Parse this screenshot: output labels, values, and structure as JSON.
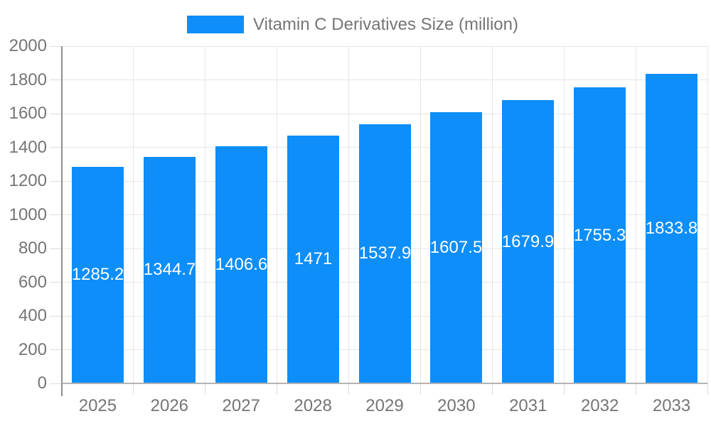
{
  "legend": {
    "label": "Vitamin C Derivatives Size (million)"
  },
  "colors": {
    "accent": "#0d8ef8",
    "text": "#757575",
    "grid": "#e6e6e6",
    "tick": "#dcdcdc",
    "axis_y_line": "#8f8f8f",
    "axis_x_line": "#b3b3b3",
    "value_label": "#ffffff",
    "background": "#ffffff"
  },
  "chart_data": {
    "type": "bar",
    "title": "Vitamin C Derivatives Size (million)",
    "series_name": "Vitamin C Derivatives Size (million)",
    "categories": [
      "2025",
      "2026",
      "2027",
      "2028",
      "2029",
      "2030",
      "2031",
      "2032",
      "2033"
    ],
    "values": [
      1285.2,
      1344.7,
      1406.6,
      1471,
      1537.9,
      1607.5,
      1679.9,
      1755.3,
      1833.8
    ],
    "value_labels": [
      "1285.2",
      "1344.7",
      "1406.6",
      "1471",
      "1537.9",
      "1607.5",
      "1679.9",
      "1755.3",
      "1833.8"
    ],
    "xlabel": "",
    "ylabel": "",
    "ylim": [
      0,
      2000
    ],
    "yticks": [
      0,
      200,
      400,
      600,
      800,
      1000,
      1200,
      1400,
      1600,
      1800,
      2000
    ],
    "grid": true,
    "legend_position": "top",
    "value_label_position": "inside-center"
  }
}
